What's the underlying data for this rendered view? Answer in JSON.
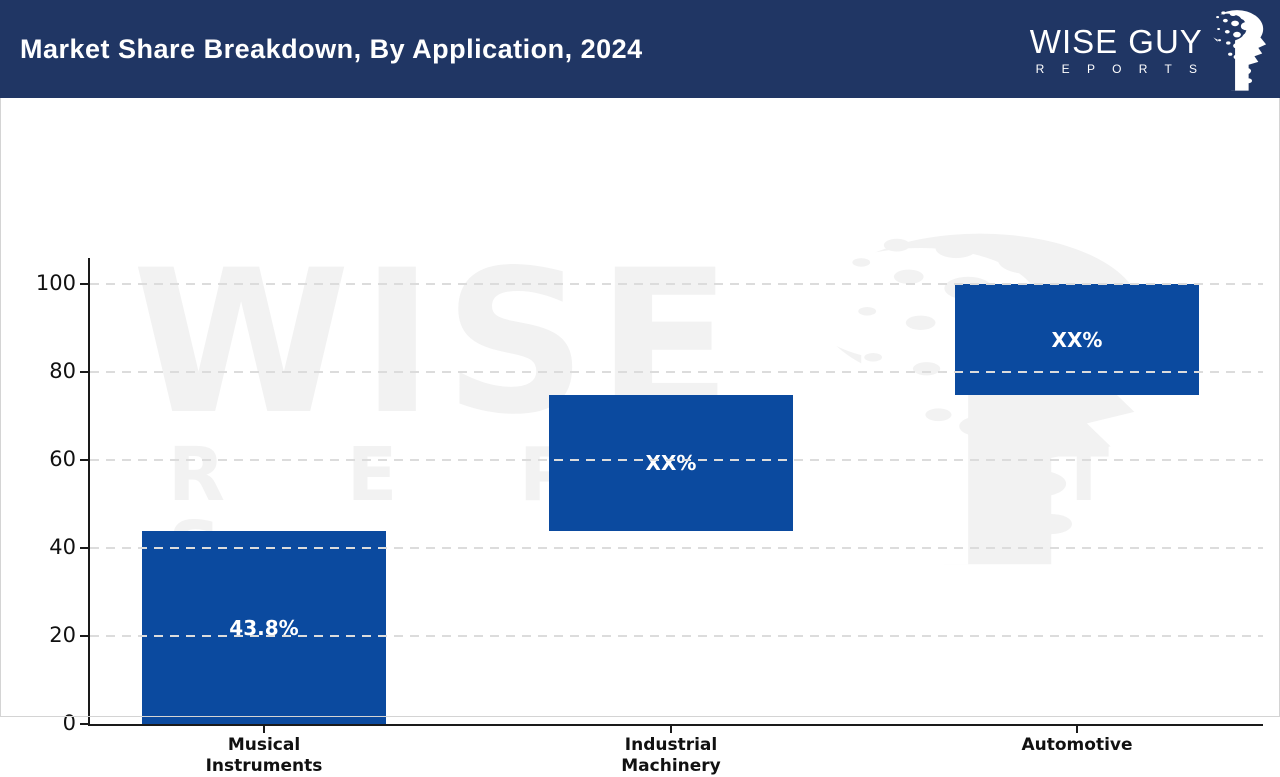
{
  "header": {
    "title": "Market Share Breakdown, By Application, 2024",
    "logo": {
      "name": "WISE GUY",
      "sub": "R E P O R T S"
    }
  },
  "watermark": {
    "word": "WISE",
    "sub": "R E P O R T S"
  },
  "chart_data": {
    "type": "bar",
    "variant": "waterfall-breakdown",
    "title": "Market Share Breakdown, By Application, 2024",
    "categories": [
      "Musical Instruments",
      "Industrial Machinery",
      "Automotive"
    ],
    "category_lines": [
      [
        "Musical",
        "Instruments"
      ],
      [
        "Industrial",
        "Machinery"
      ],
      [
        "Automotive"
      ]
    ],
    "segments": [
      {
        "category": "Musical Instruments",
        "start": 0,
        "end": 43.8,
        "label": "43.8%"
      },
      {
        "category": "Industrial Machinery",
        "start": 43.8,
        "end": 74.8,
        "label": "XX%"
      },
      {
        "category": "Automotive",
        "start": 74.8,
        "end": 100,
        "label": "XX%"
      }
    ],
    "yticks": [
      0,
      20,
      40,
      60,
      80,
      100
    ],
    "ytick_labels": [
      "0",
      "20",
      "40",
      "60",
      "80",
      "100"
    ],
    "ylim": [
      0,
      106
    ],
    "xlabel": "",
    "ylabel": "",
    "grid": "horizontal-dashed",
    "legend": "none",
    "bar_color": "#0b4a9f",
    "value_label_color": "#ffffff"
  },
  "colors": {
    "header_bg": "#203664",
    "bar": "#0b4a9f",
    "grid_line": "#dcdcdc",
    "axis": "#1a1a1a",
    "watermark": "#f2f2f2",
    "frame_border": "#d4d4d4"
  }
}
